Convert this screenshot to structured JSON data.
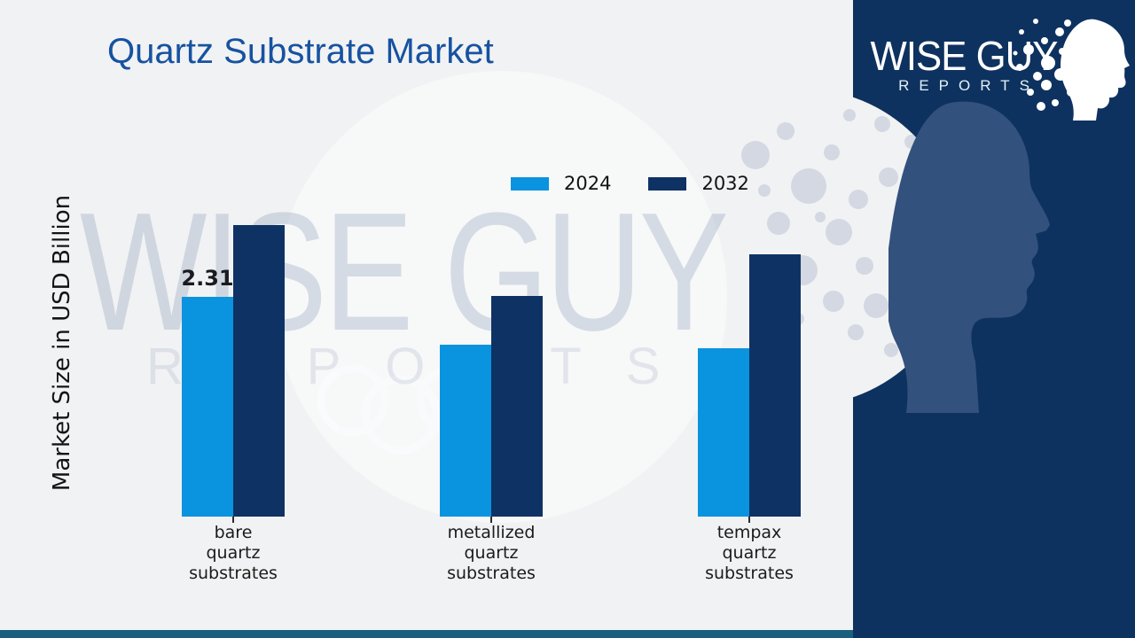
{
  "page": {
    "title": "Quartz Substrate Market",
    "title_color": "#1652a1",
    "background": "#f1f2f3"
  },
  "brand": {
    "logo_line1": "WISE GUY",
    "logo_line2": "REPORTS",
    "panel_color": "#0e325f",
    "accent_bar_color": "#1a607e",
    "face_color": "#33517d",
    "logo_face_icon": "face-profile-dots"
  },
  "watermark": {
    "line1": "WISE GUY",
    "line2": "REPORTS"
  },
  "chart_data": {
    "type": "bar",
    "title": "Quartz Substrate Market",
    "xlabel": "",
    "ylabel": "Market Size in USD Billion",
    "categories": [
      "bare quartz substrates",
      "metallized quartz substrates",
      "tempax quartz substrates"
    ],
    "series": [
      {
        "name": "2024",
        "color": "#0a93de",
        "values": [
          2.31,
          1.81,
          1.77
        ],
        "data_labels": [
          "2.31",
          "",
          ""
        ]
      },
      {
        "name": "2032",
        "color": "#0e3264",
        "values": [
          3.06,
          2.32,
          2.76
        ],
        "data_labels": [
          "",
          "",
          ""
        ]
      }
    ],
    "legend_position": "top-center",
    "grid": false,
    "ylim": [
      0,
      3.3
    ],
    "value_unit": "USD Billion"
  }
}
